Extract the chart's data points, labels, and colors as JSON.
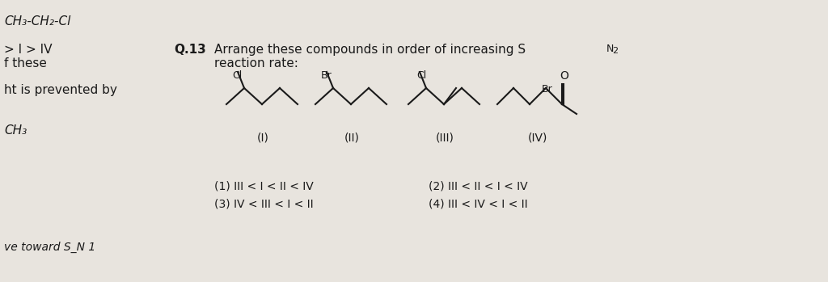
{
  "background_color": "#d8d0c8",
  "paper_color": "#e8e4de",
  "question_number": "Q.13",
  "question_text": "Arrange these compounds in order of increasing S",
  "question_text2": "reaction rate:",
  "sn2_label": "N2",
  "left_text_lines": [
    "CH₃-CH₂-Cl",
    "> I > IV",
    "f these",
    "ht is prevented by",
    "CH₃",
    "ve toward Sₙ 1"
  ],
  "compound_labels": [
    "(I)",
    "(II)",
    "(III)",
    "(IV)"
  ],
  "compound_halogens": [
    "Cl",
    "Br",
    "Cl",
    "Br"
  ],
  "options": [
    [
      "(1) III < I < II < IV",
      "(2) III < II < I < IV"
    ],
    [
      "(3) IV < III < I < II",
      "(4) III < IV < I < II"
    ]
  ],
  "font_color": "#1a1a1a",
  "text_fontsize": 11,
  "question_fontsize": 11
}
